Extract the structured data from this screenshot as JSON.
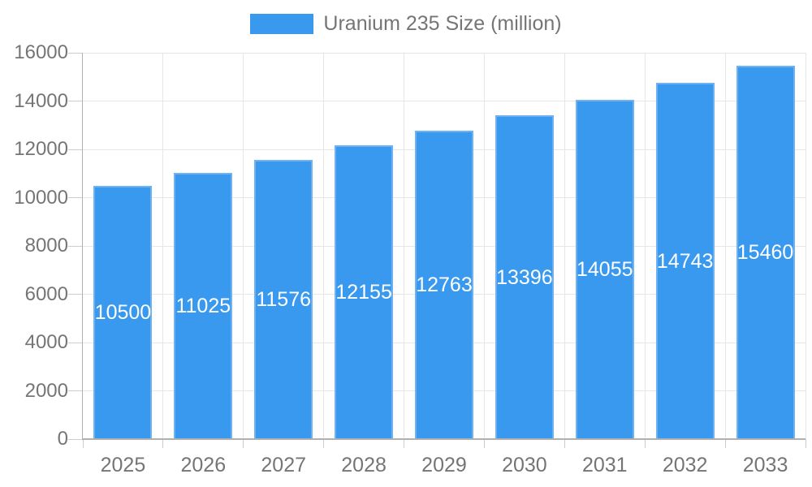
{
  "legend": {
    "swatch_icon": "blue-square-swatch"
  },
  "chart_data": {
    "type": "bar",
    "title": "",
    "series_name": "Uranium 235 Size (million)",
    "categories": [
      "2025",
      "2026",
      "2027",
      "2028",
      "2029",
      "2030",
      "2031",
      "2032",
      "2033"
    ],
    "values": [
      10500,
      11025,
      11576,
      12155,
      12763,
      13396,
      14055,
      14743,
      15460
    ],
    "xlabel": "",
    "ylabel": "",
    "ylim": [
      0,
      16000
    ],
    "yticks": [
      0,
      2000,
      4000,
      6000,
      8000,
      10000,
      12000,
      14000,
      16000
    ],
    "grid": true,
    "legend_position": "top-center",
    "value_labels": "inside-center",
    "colors": {
      "bar_fill": "#3899EE",
      "bar_border": "#6FB1F1",
      "grid_line": "#E6E6E6",
      "axis_line": "#B0B0B0",
      "tick_mark": "#CCCCCC",
      "axis_text": "#757575",
      "value_text": "#FFFFFF",
      "background": "#FFFFFF"
    }
  }
}
